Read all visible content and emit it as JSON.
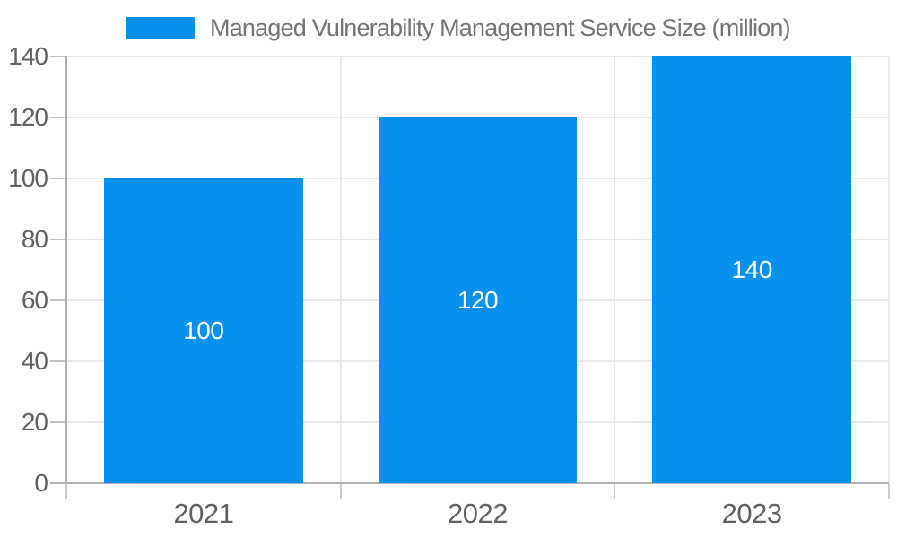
{
  "chart_data": {
    "type": "bar",
    "title": "Managed Vulnerability Management Service Size (million)",
    "series_name": "Managed Vulnerability Management Service Size (million)",
    "categories": [
      "2021",
      "2022",
      "2023"
    ],
    "values": [
      100,
      120,
      140
    ],
    "data_labels": [
      "100",
      "120",
      "140"
    ],
    "xlabel": "",
    "ylabel": "",
    "ylim": [
      0,
      140
    ],
    "yticks": [
      0,
      20,
      40,
      60,
      80,
      100,
      120,
      140
    ],
    "grid": true,
    "legend_position": "top",
    "bar_color": "#0991f2"
  },
  "legend": {
    "label": "Managed Vulnerability Management Service Size (million)",
    "swatch_color": "#0991f2"
  },
  "colors": {
    "bar": "#0991f2",
    "axis_line": "#b0b0b0",
    "gridline": "#e8e8e8",
    "tick_mark": "#c2c2c2",
    "boundary_tick": "#cccccc",
    "axis_label": "#616161",
    "title_text": "#757575",
    "data_label": "#ffffff",
    "background": "#ffffff"
  }
}
